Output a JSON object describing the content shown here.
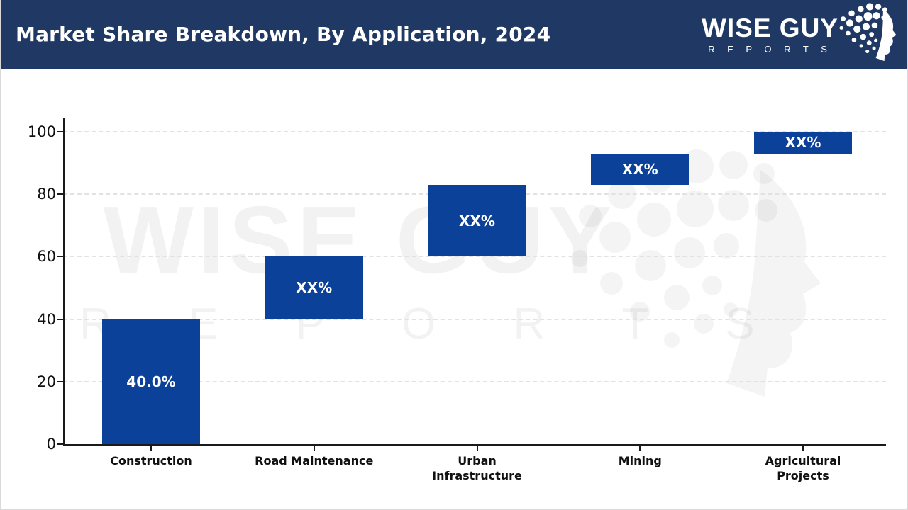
{
  "header": {
    "title": "Market Share Breakdown, By Application, 2024",
    "logo": {
      "line1": "WISE GUY",
      "line2": "R E P O R T S"
    },
    "background_color": "#203864",
    "text_color": "#ffffff"
  },
  "watermark": {
    "line1": "WISE GUY",
    "line2": "R E P O R T S"
  },
  "chart_data": {
    "type": "bar",
    "subtype": "waterfall",
    "title": "Market Share Breakdown, By Application, 2024",
    "categories": [
      "Construction",
      "Road Maintenance",
      "Urban\nInfrastructure",
      "Mining",
      "Agricultural\nProjects"
    ],
    "series": [
      {
        "name": "Market Share (%)",
        "segments": [
          {
            "category": "Construction",
            "start": 0,
            "end": 40,
            "value": 40,
            "label": "40.0%"
          },
          {
            "category": "Road Maintenance",
            "start": 40,
            "end": 60,
            "value": 20,
            "label": "XX%"
          },
          {
            "category": "Urban Infrastructure",
            "start": 60,
            "end": 83,
            "value": 23,
            "label": "XX%"
          },
          {
            "category": "Mining",
            "start": 83,
            "end": 93,
            "value": 10,
            "label": "XX%"
          },
          {
            "category": "Agricultural Projects",
            "start": 93,
            "end": 100,
            "value": 7,
            "label": "XX%"
          }
        ]
      }
    ],
    "ylim": [
      0,
      100
    ],
    "yticks": [
      0,
      20,
      40,
      60,
      80,
      100
    ],
    "grid": "horizontal dashed",
    "legend": false,
    "bar_color": "#0c4199",
    "bar_label_color": "#ffffff",
    "axis_color": "#1a1a1a",
    "gridline_color": "#e2e2e2"
  }
}
